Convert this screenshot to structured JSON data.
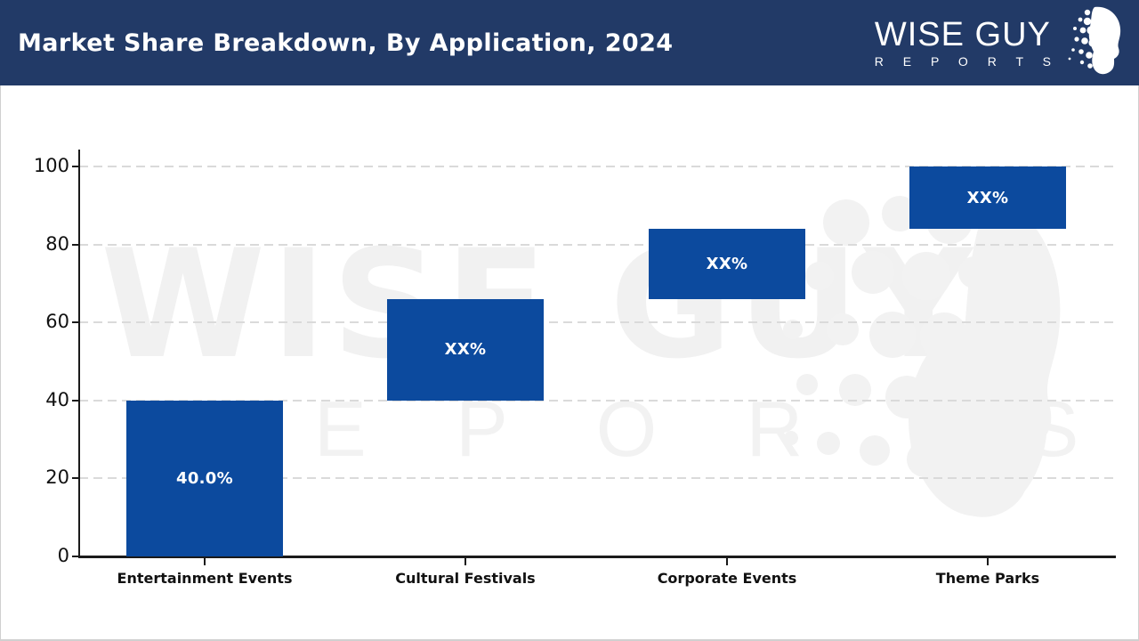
{
  "header": {
    "title": "Market Share Breakdown, By Application, 2024",
    "background_color": "#223a67",
    "logo": {
      "line1": "WISE GUY",
      "line2": "R E P O R T S"
    }
  },
  "watermark": {
    "line1": "WISE GUY",
    "line2": "R E P O R T S"
  },
  "chart_data": {
    "type": "bar",
    "subtype": "waterfall",
    "title": "Market Share Breakdown, By Application, 2024",
    "xlabel": "",
    "ylabel": "",
    "categories": [
      "Entertainment Events",
      "Cultural Festivals",
      "Corporate Events",
      "Theme Parks"
    ],
    "segments": [
      {
        "category": "Entertainment Events",
        "start": 0,
        "end": 40,
        "label": "40.0%"
      },
      {
        "category": "Cultural Festivals",
        "start": 40,
        "end": 66,
        "label": "XX%"
      },
      {
        "category": "Corporate Events",
        "start": 66,
        "end": 84,
        "label": "XX%"
      },
      {
        "category": "Theme Parks",
        "start": 84,
        "end": 100,
        "label": "XX%"
      }
    ],
    "yticks": [
      0,
      20,
      40,
      60,
      80,
      100
    ],
    "ylim": [
      0,
      105
    ],
    "grid": "horizontal-dashed",
    "legend": "none",
    "bar_color": "#0c4a9e",
    "bar_label_color": "#ffffff"
  }
}
